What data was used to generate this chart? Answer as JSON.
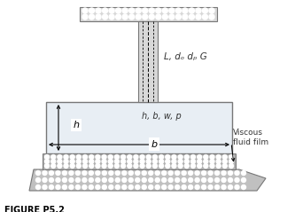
{
  "fig_label": "FIGURE P5.2",
  "rod_label": "L, dₒ dₚ G",
  "block_label": "h, b, w, p",
  "h_label": "h",
  "b_label": "b",
  "viscous_label": "Viscous\nfluid film",
  "bg_color": "#ffffff",
  "block_fill": "#e8eef4",
  "block_edge": "#777777",
  "rod_fill": "#d8d8d8",
  "rod_edge": "#777777",
  "handle_fill": "#d8d8d8",
  "fluid_fill": "#b0b0b0",
  "ground_fill": "#c0c0c0",
  "dot_color": "#ffffff",
  "text_color": "#333333",
  "orange_color": "#cc6600"
}
